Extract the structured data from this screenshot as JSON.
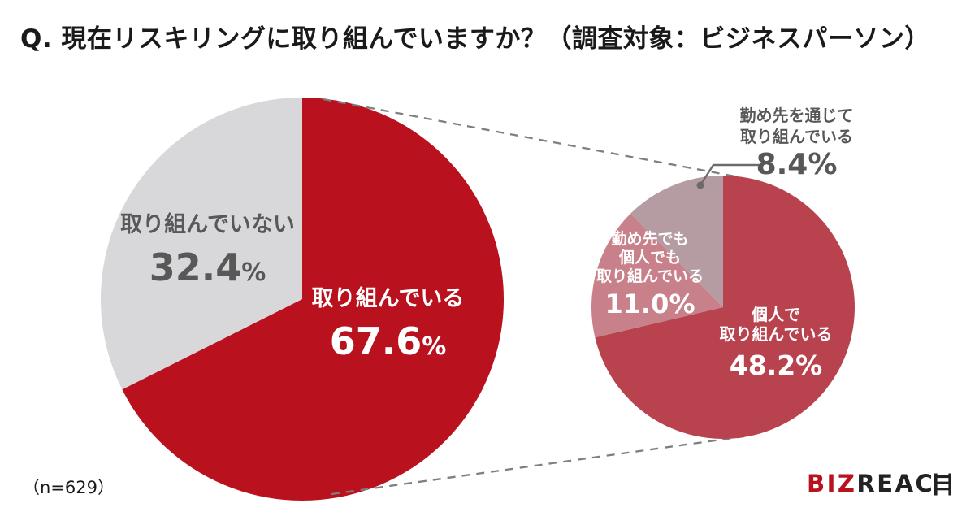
{
  "title": "Q. 現在リスキリングに取り組んでいますか？（調査対象：ビジネスパーソン）",
  "sample_size_note": "（n=629）",
  "percent_sign": "%",
  "colors": {
    "primary_red": "#B9121E",
    "neutral_gray": "#D8D8DA",
    "sub_red": "#B8434F",
    "sub_rose": "#C8808A",
    "sub_mauve": "#B49CA2",
    "text_dark_gray": "#595757",
    "text_white": "#FFFFFF",
    "connector_gray": "#7F7F7F",
    "leader_gray": "#6E6A6A",
    "logo_red": "#B9121E",
    "logo_dark": "#222222"
  },
  "chart_data": [
    {
      "type": "pie",
      "name": "reskilling-overall",
      "title": "現在リスキリングに取り組んでいますか？",
      "n_label": "n=629",
      "start_angle_deg": 0,
      "direction": "clockwise",
      "slices": [
        {
          "label": "取り組んでいる",
          "value": 67.6,
          "value_text": "67.6",
          "color": "#B9121E"
        },
        {
          "label": "取り組んでいない",
          "value": 32.4,
          "value_text": "32.4",
          "color": "#D8D8DA"
        }
      ]
    },
    {
      "type": "pie",
      "name": "reskilling-engaged-breakdown",
      "title": "取り組んでいる 67.6% の内訳",
      "start_angle_deg": 0,
      "direction": "clockwise",
      "slices": [
        {
          "label": "個人で取り組んでいる",
          "label_lines": [
            "個人で",
            "取り組んでいる"
          ],
          "value": 48.2,
          "value_text": "48.2%",
          "color": "#B8434F"
        },
        {
          "label": "勤め先でも個人でも取り組んでいる",
          "label_lines": [
            "勤め先でも",
            "個人でも",
            "取り組んでいる"
          ],
          "value": 11.0,
          "value_text": "11.0%",
          "color": "#C8808A"
        },
        {
          "label": "勤め先を通じて取り組んでいる",
          "label_lines": [
            "勤め先を通じて",
            "取り組んでいる"
          ],
          "value": 8.4,
          "value_text": "8.4%",
          "color": "#B49CA2"
        }
      ]
    }
  ],
  "logo": {
    "part1": "BIZ",
    "part2": "REAC"
  }
}
